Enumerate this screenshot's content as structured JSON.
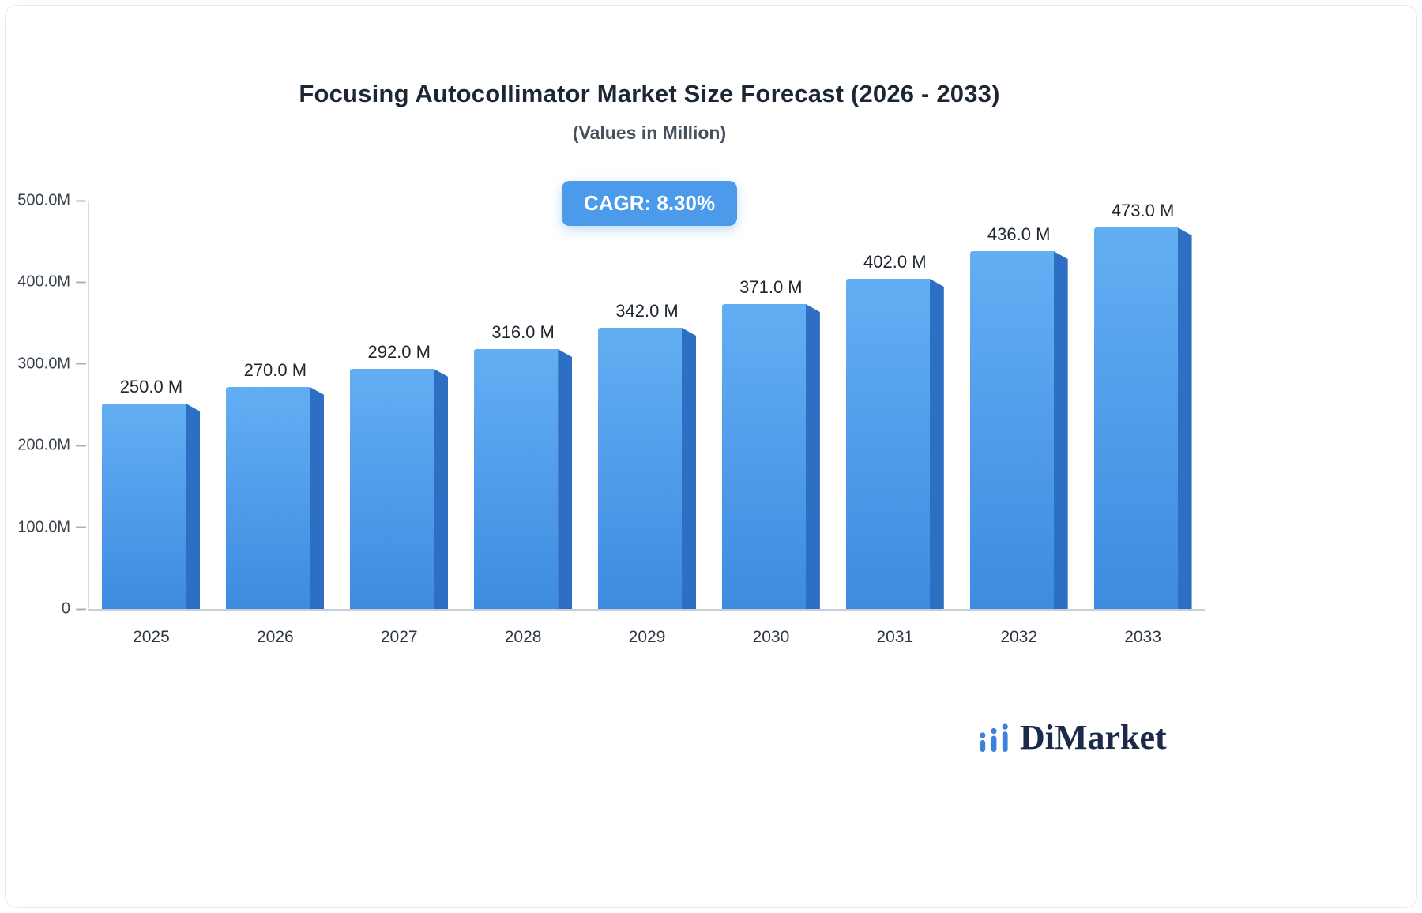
{
  "header": {
    "title": "Focusing Autocollimator Market Size Forecast (2026 - 2033)",
    "subtitle": "(Values in Million)",
    "cagr_label": "CAGR: 8.30%"
  },
  "logo": {
    "name": "DiMarket",
    "icon": "bar-chart-dots-icon"
  },
  "colors": {
    "bar_front_top": "#63AEF3",
    "bar_front_bottom": "#3E8BE0",
    "bar_side": "#2D6FC2",
    "badge_bg": "#4B9BEA",
    "axis_line": "#C9CFD6",
    "title_text": "#1C2733",
    "subtitle_text": "#46515D",
    "label_text": "#1E2630",
    "tick_text": "#38424D",
    "logo_text": "#1B2A4A",
    "logo_icon": "#3C82DC"
  },
  "chart_data": {
    "type": "bar",
    "title": "Focusing Autocollimator Market Size Forecast (2026 - 2033)",
    "subtitle": "(Values in Million)",
    "unit": "Million",
    "cagr": "8.30%",
    "categories": [
      "2025",
      "2026",
      "2027",
      "2028",
      "2029",
      "2030",
      "2031",
      "2032",
      "2033"
    ],
    "values": [
      250.0,
      270.0,
      292.0,
      316.0,
      342.0,
      371.0,
      402.0,
      436.0,
      473.0
    ],
    "value_labels": [
      "250.0 M",
      "270.0 M",
      "292.0 M",
      "316.0 M",
      "342.0 M",
      "371.0 M",
      "402.0 M",
      "436.0 M",
      "473.0 M"
    ],
    "ylim": [
      0,
      500
    ],
    "yticks": [
      {
        "value": 0,
        "label": "0"
      },
      {
        "value": 100,
        "label": "100.0M"
      },
      {
        "value": 200,
        "label": "200.0M"
      },
      {
        "value": 300,
        "label": "300.0M"
      },
      {
        "value": 400,
        "label": "400.0M"
      },
      {
        "value": 500,
        "label": "500.0M"
      }
    ],
    "grid": false,
    "legend_position": "none"
  }
}
